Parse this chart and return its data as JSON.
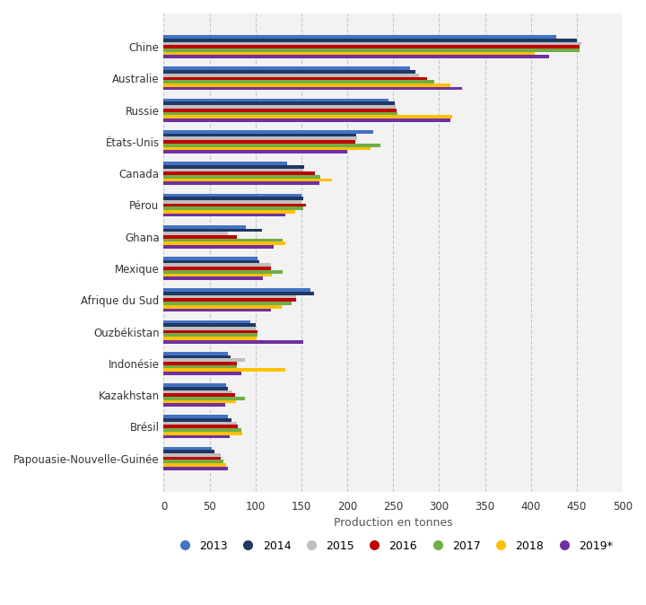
{
  "countries": [
    "Chine",
    "Australie",
    "Russie",
    "États-Unis",
    "Canada",
    "Pérou",
    "Ghana",
    "Mexique",
    "Afrique du Sud",
    "Ouzbékistan",
    "Indonésie",
    "Kazakhstan",
    "Brésil",
    "Papouasie-Nouvelle-Guinée"
  ],
  "years": [
    "2013",
    "2014",
    "2015",
    "2016",
    "2017",
    "2018",
    "2019*"
  ],
  "colors": [
    "#4472C4",
    "#1F3864",
    "#BFBFBF",
    "#C00000",
    "#70AD47",
    "#FFC000",
    "#7030A0"
  ],
  "data": {
    "Chine": [
      428,
      450,
      455,
      453,
      453,
      404,
      420
    ],
    "Australie": [
      268,
      274,
      278,
      287,
      295,
      312,
      325
    ],
    "Russie": [
      245,
      252,
      253,
      254,
      255,
      314,
      312
    ],
    "États-Unis": [
      228,
      210,
      211,
      209,
      236,
      225,
      200
    ],
    "Canada": [
      134,
      153,
      152,
      165,
      171,
      183,
      170
    ],
    "Pérou": [
      150,
      152,
      150,
      155,
      152,
      143,
      132
    ],
    "Ghana": [
      89,
      107,
      70,
      80,
      130,
      132,
      120
    ],
    "Mexique": [
      102,
      104,
      117,
      117,
      130,
      118,
      108
    ],
    "Afrique du Sud": [
      160,
      164,
      144,
      144,
      139,
      129,
      117
    ],
    "Ouzbékistan": [
      94,
      100,
      100,
      102,
      102,
      101,
      152
    ],
    "Indonésie": [
      70,
      73,
      88,
      80,
      80,
      132,
      85
    ],
    "Kazakhstan": [
      68,
      70,
      75,
      78,
      88,
      79,
      67
    ],
    "Brésil": [
      70,
      74,
      80,
      81,
      85,
      86,
      72
    ],
    "Papouasie-Nouvelle-Guinée": [
      52,
      55,
      62,
      62,
      65,
      68,
      70
    ]
  },
  "xlabel": "Production en tonnes",
  "xlim": [
    0,
    500
  ],
  "xticks": [
    0,
    50,
    100,
    150,
    200,
    250,
    300,
    350,
    400,
    450,
    500
  ],
  "background_color": "#FFFFFF",
  "plot_bg_color": "#F2F2F2",
  "grid_color": "#C8C8C8"
}
